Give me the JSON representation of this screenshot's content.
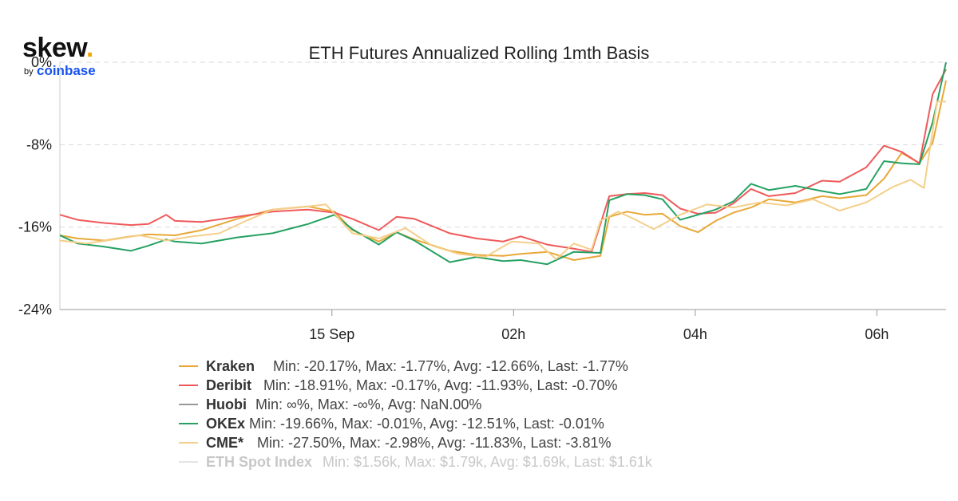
{
  "logo": {
    "word": "skew",
    "dot": ".",
    "by": "by",
    "company": "coinbase"
  },
  "chart_data": {
    "type": "line",
    "title": "ETH Futures Annualized Rolling 1mth Basis",
    "ylim": [
      -24,
      0
    ],
    "y_ticks": [
      "0%",
      "-8%",
      "-16%",
      "-24%"
    ],
    "y_tick_values": [
      0,
      -8,
      -16,
      -24
    ],
    "x_ticks": [
      "15 Sep",
      "02h",
      "04h",
      "06h"
    ],
    "x_tick_positions": [
      0.307,
      0.512,
      0.717,
      0.922
    ],
    "grid": true,
    "legend_position": "bottom",
    "series": [
      {
        "name": "Kraken",
        "color": "#e8a838",
        "stats": "Min: -20.17%, Max: -1.77%, Avg: -12.66%, Last: -1.77%",
        "x": [
          0,
          0.02,
          0.05,
          0.08,
          0.1,
          0.13,
          0.16,
          0.2,
          0.24,
          0.28,
          0.31,
          0.33,
          0.36,
          0.38,
          0.4,
          0.44,
          0.47,
          0.5,
          0.52,
          0.55,
          0.58,
          0.61,
          0.62,
          0.64,
          0.66,
          0.68,
          0.7,
          0.72,
          0.74,
          0.76,
          0.78,
          0.8,
          0.83,
          0.86,
          0.88,
          0.91,
          0.93,
          0.95,
          0.97,
          0.985,
          1
        ],
        "values": [
          -16.8,
          -17.1,
          -17.3,
          -16.9,
          -16.7,
          -16.8,
          -16.3,
          -15.2,
          -14.3,
          -14.0,
          -14.5,
          -16.3,
          -17.4,
          -16.5,
          -17.2,
          -18.3,
          -18.7,
          -18.8,
          -18.6,
          -18.4,
          -19.2,
          -18.8,
          -15.0,
          -14.5,
          -14.8,
          -14.7,
          -15.9,
          -16.5,
          -15.4,
          -14.6,
          -14.1,
          -13.3,
          -13.6,
          -13.0,
          -13.2,
          -12.9,
          -11.3,
          -8.8,
          -9.8,
          -7.8,
          -1.77
        ]
      },
      {
        "name": "Deribit",
        "color": "#f0595a",
        "stats": "Min: -18.91%, Max: -0.17%, Avg: -11.93%, Last: -0.70%",
        "x": [
          0,
          0.02,
          0.05,
          0.08,
          0.1,
          0.12,
          0.13,
          0.16,
          0.2,
          0.24,
          0.28,
          0.31,
          0.33,
          0.36,
          0.38,
          0.4,
          0.44,
          0.47,
          0.5,
          0.52,
          0.55,
          0.58,
          0.6,
          0.62,
          0.64,
          0.66,
          0.68,
          0.7,
          0.72,
          0.74,
          0.76,
          0.78,
          0.8,
          0.83,
          0.86,
          0.88,
          0.91,
          0.93,
          0.95,
          0.97,
          0.985,
          1
        ],
        "values": [
          -14.8,
          -15.3,
          -15.6,
          -15.8,
          -15.7,
          -14.8,
          -15.4,
          -15.5,
          -15.0,
          -14.5,
          -14.3,
          -14.6,
          -15.2,
          -16.3,
          -15.0,
          -15.2,
          -16.6,
          -17.1,
          -17.4,
          -16.9,
          -17.7,
          -18.1,
          -18.4,
          -13.0,
          -12.8,
          -12.7,
          -12.9,
          -14.2,
          -14.7,
          -14.6,
          -13.7,
          -12.3,
          -13.0,
          -12.7,
          -11.5,
          -11.6,
          -10.2,
          -8.1,
          -8.7,
          -9.8,
          -3.1,
          -0.7
        ]
      },
      {
        "name": "Huobi",
        "color": "#999999",
        "stats": "Min: ∞%, Max: -∞%, Avg: NaN.00%",
        "x": [],
        "values": []
      },
      {
        "name": "OKEx",
        "color": "#26a163",
        "stats": "Min: -19.66%, Max: -0.01%, Avg: -12.51%, Last: -0.01%",
        "x": [
          0,
          0.02,
          0.05,
          0.08,
          0.1,
          0.12,
          0.13,
          0.16,
          0.2,
          0.24,
          0.28,
          0.31,
          0.33,
          0.36,
          0.38,
          0.4,
          0.44,
          0.47,
          0.5,
          0.52,
          0.55,
          0.58,
          0.61,
          0.62,
          0.64,
          0.66,
          0.68,
          0.7,
          0.72,
          0.74,
          0.76,
          0.78,
          0.8,
          0.83,
          0.86,
          0.88,
          0.91,
          0.93,
          0.95,
          0.97,
          0.985,
          1
        ],
        "values": [
          -16.8,
          -17.6,
          -17.9,
          -18.3,
          -17.8,
          -17.2,
          -17.4,
          -17.6,
          -17.0,
          -16.6,
          -15.7,
          -14.8,
          -16.2,
          -17.7,
          -16.5,
          -17.3,
          -19.4,
          -18.9,
          -19.3,
          -19.2,
          -19.6,
          -18.4,
          -18.5,
          -13.4,
          -12.8,
          -12.9,
          -13.3,
          -15.3,
          -14.8,
          -14.3,
          -13.5,
          -11.8,
          -12.4,
          -12.0,
          -12.5,
          -12.8,
          -12.3,
          -9.6,
          -9.8,
          -9.9,
          -5.8,
          -0.01
        ]
      },
      {
        "name": "CME*",
        "color": "#f4cf8a",
        "stats": "Min: -27.50%, Max: -2.98%, Avg: -11.83%, Last: -3.81%",
        "x": [
          0,
          0.03,
          0.06,
          0.09,
          0.12,
          0.15,
          0.18,
          0.21,
          0.24,
          0.27,
          0.3,
          0.31,
          0.33,
          0.36,
          0.39,
          0.42,
          0.45,
          0.48,
          0.51,
          0.54,
          0.56,
          0.58,
          0.6,
          0.61,
          0.63,
          0.65,
          0.67,
          0.7,
          0.73,
          0.76,
          0.79,
          0.82,
          0.85,
          0.88,
          0.91,
          0.94,
          0.96,
          0.975,
          0.99,
          1
        ],
        "values": [
          -17.3,
          -17.6,
          -17.2,
          -16.8,
          -17.3,
          -16.9,
          -16.6,
          -15.4,
          -14.3,
          -14.1,
          -13.8,
          -14.7,
          -16.6,
          -17.1,
          -16.1,
          -17.8,
          -18.6,
          -18.9,
          -17.4,
          -17.6,
          -19.1,
          -17.6,
          -18.2,
          -15.4,
          -14.5,
          -15.3,
          -16.2,
          -14.8,
          -13.8,
          -14.1,
          -13.6,
          -13.9,
          -13.3,
          -14.4,
          -13.6,
          -12.1,
          -11.4,
          -12.2,
          -3.81,
          -3.81
        ]
      },
      {
        "name": "ETH Spot Index",
        "color": "#e5e5e5",
        "muted": true,
        "stats": "Min: $1.56k, Max: $1.79k, Avg: $1.69k, Last: $1.61k",
        "x": [],
        "values": []
      }
    ]
  }
}
